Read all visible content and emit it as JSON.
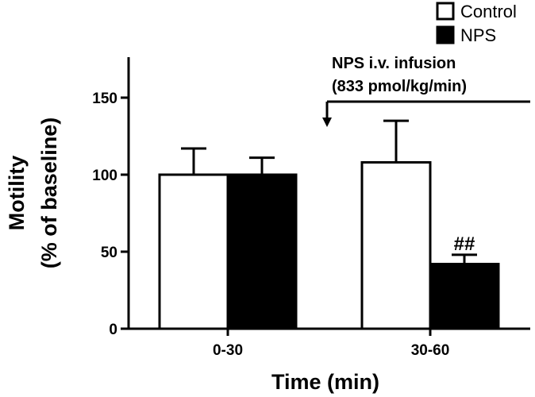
{
  "chart_data": {
    "type": "bar",
    "categories": [
      "0-30",
      "30-60"
    ],
    "series": [
      {
        "name": "Control",
        "color": "#ffffff",
        "values": [
          100,
          108
        ],
        "errors": [
          17,
          27
        ]
      },
      {
        "name": "NPS",
        "color": "#000000",
        "values": [
          100,
          42
        ],
        "errors": [
          11,
          6
        ]
      }
    ],
    "xlabel": "Time (min)",
    "ylabel_line1": "Motility",
    "ylabel_line2": "(% of baseline)",
    "ylim": [
      0,
      175
    ],
    "yticks": [
      0,
      50,
      100,
      150
    ],
    "legend_position": "top-right",
    "grid": false,
    "annotation": {
      "line1": "NPS i.v. infusion",
      "line2": "(833 pmol/kg/min)"
    },
    "significance": {
      "category_index": 1,
      "series_index": 1,
      "label": "##"
    }
  }
}
